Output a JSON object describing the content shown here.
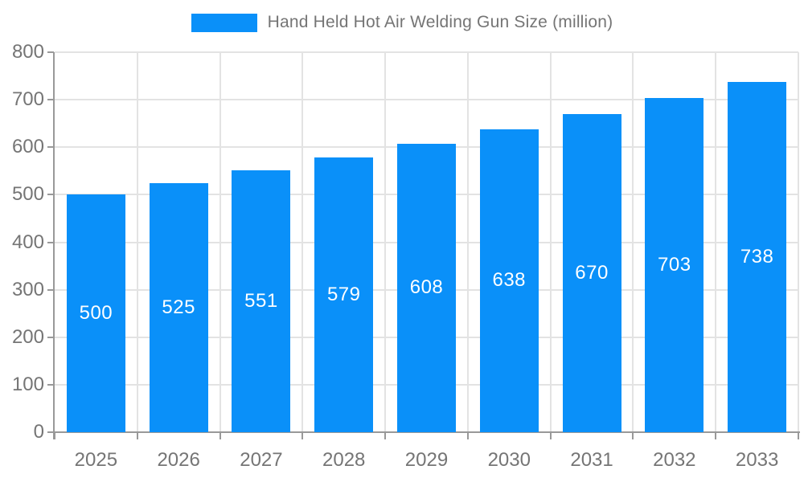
{
  "legend": {
    "label": "Hand Held Hot Air Welding Gun Size (million)"
  },
  "chart_data": {
    "type": "bar",
    "title": "Hand Held Hot Air Welding Gun Size (million)",
    "categories": [
      "2025",
      "2026",
      "2027",
      "2028",
      "2029",
      "2030",
      "2031",
      "2032",
      "2033"
    ],
    "values": [
      500,
      525,
      551,
      579,
      608,
      638,
      670,
      703,
      738
    ],
    "xlabel": "",
    "ylabel": "",
    "ylim": [
      0,
      800
    ],
    "y_ticks": [
      0,
      100,
      200,
      300,
      400,
      500,
      600,
      700,
      800
    ],
    "grid": true,
    "legend_position": "top-center",
    "value_labels": "inside-center-white",
    "colors": {
      "bar": "#0a90f9",
      "value_label": "#ffffff",
      "axis": "#999999",
      "gridline": "#e3e3e3",
      "label_text": "#757575"
    }
  }
}
